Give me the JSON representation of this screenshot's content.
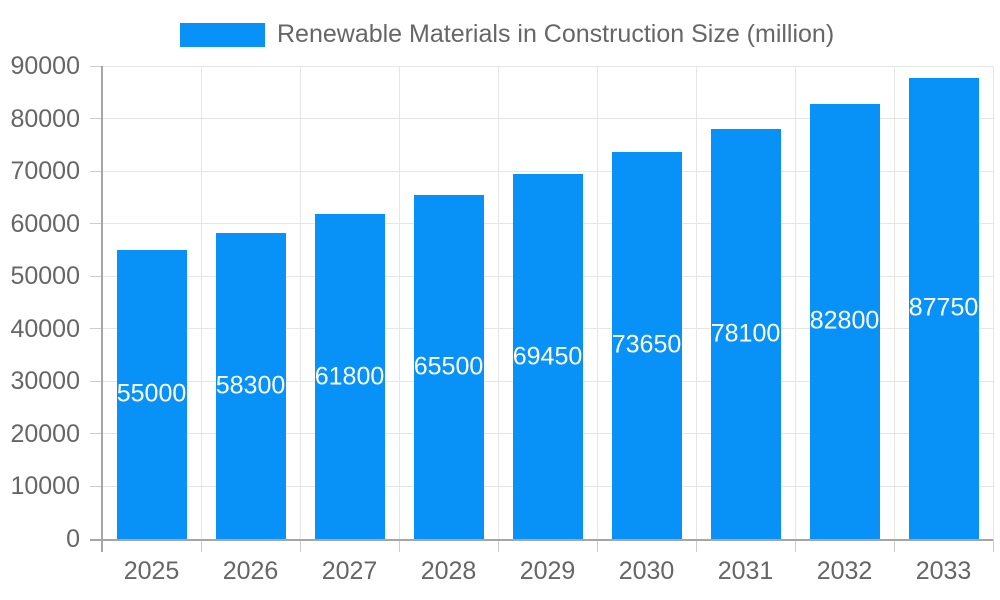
{
  "chart_data": {
    "type": "bar",
    "title": "Renewable Materials in Construction Size (million)",
    "categories": [
      "2025",
      "2026",
      "2027",
      "2028",
      "2029",
      "2030",
      "2031",
      "2032",
      "2033"
    ],
    "values": [
      55000,
      58300,
      61800,
      65500,
      69450,
      73650,
      78100,
      82800,
      87750
    ],
    "series": [
      {
        "name": "Renewable Materials in Construction Size (million)",
        "values": [
          55000,
          58300,
          61800,
          65500,
          69450,
          73650,
          78100,
          82800,
          87750
        ]
      }
    ],
    "xlabel": "",
    "ylabel": "",
    "ylim": [
      0,
      90000
    ],
    "ytick_step": 10000,
    "grid": true,
    "legend_position": "top",
    "colors": {
      "bar": "#0892f8",
      "value_label": "#ffffff",
      "axis_text": "#666666",
      "gridline": "#e6e6e6",
      "axis_line": "#a6a6a6",
      "tick": "#cccccc",
      "background": "#ffffff"
    }
  }
}
